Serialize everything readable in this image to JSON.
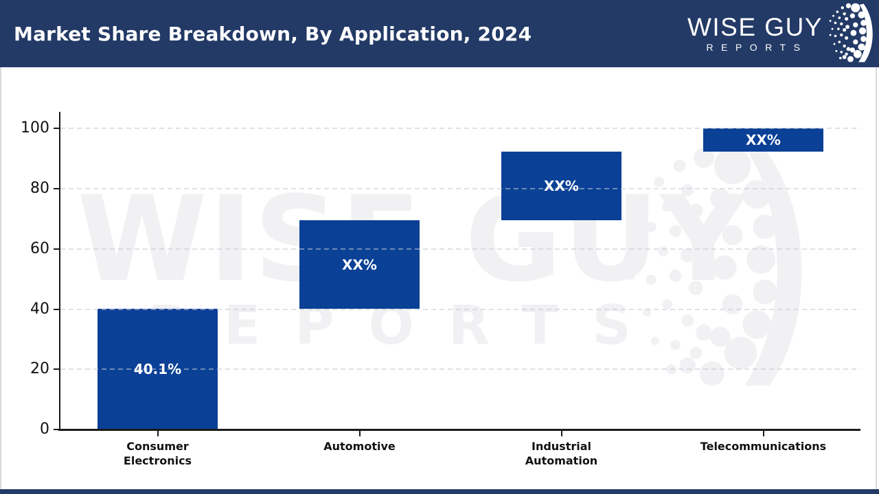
{
  "header": {
    "title": "Market Share Breakdown, By Application, 2024",
    "logo": {
      "line1": "WISE GUY",
      "line2": "REPORTS"
    }
  },
  "watermark": {
    "line1": "WISE GUY",
    "line2": "REPORTS"
  },
  "colors": {
    "header_bg": "#233a66",
    "footer_bg": "#233a66",
    "bar_blue": "#0a4096",
    "watermark_gray": "#f1f1f3",
    "gridline_gray": "#dedede",
    "axis_black": "#1a1a1a",
    "title_text": "#ffffff",
    "bar_label_text": "#ffffff",
    "tick_text": "#111111"
  },
  "chart_data": {
    "type": "bar",
    "subtype": "waterfall",
    "title": "Market Share Breakdown, By Application, 2024",
    "categories": [
      "Consumer Electronics",
      "Automotive",
      "Industrial Automation",
      "Telecommunications"
    ],
    "segments": [
      {
        "category": "Consumer Electronics",
        "start": 0,
        "end": 40.1,
        "label": "40.1%"
      },
      {
        "category": "Automotive",
        "start": 40.1,
        "end": 69.5,
        "label": "XX%"
      },
      {
        "category": "Industrial Automation",
        "start": 69.5,
        "end": 92.2,
        "label": "XX%"
      },
      {
        "category": "Telecommunications",
        "start": 92.2,
        "end": 100.0,
        "label": "XX%"
      }
    ],
    "y_ticks": [
      0,
      20,
      40,
      60,
      80,
      100
    ],
    "ylim": [
      0,
      105.5
    ],
    "xlabel": "",
    "ylabel": "",
    "grid": "horizontal-dashed",
    "legend": "none",
    "bar_color": "#0a4096"
  }
}
